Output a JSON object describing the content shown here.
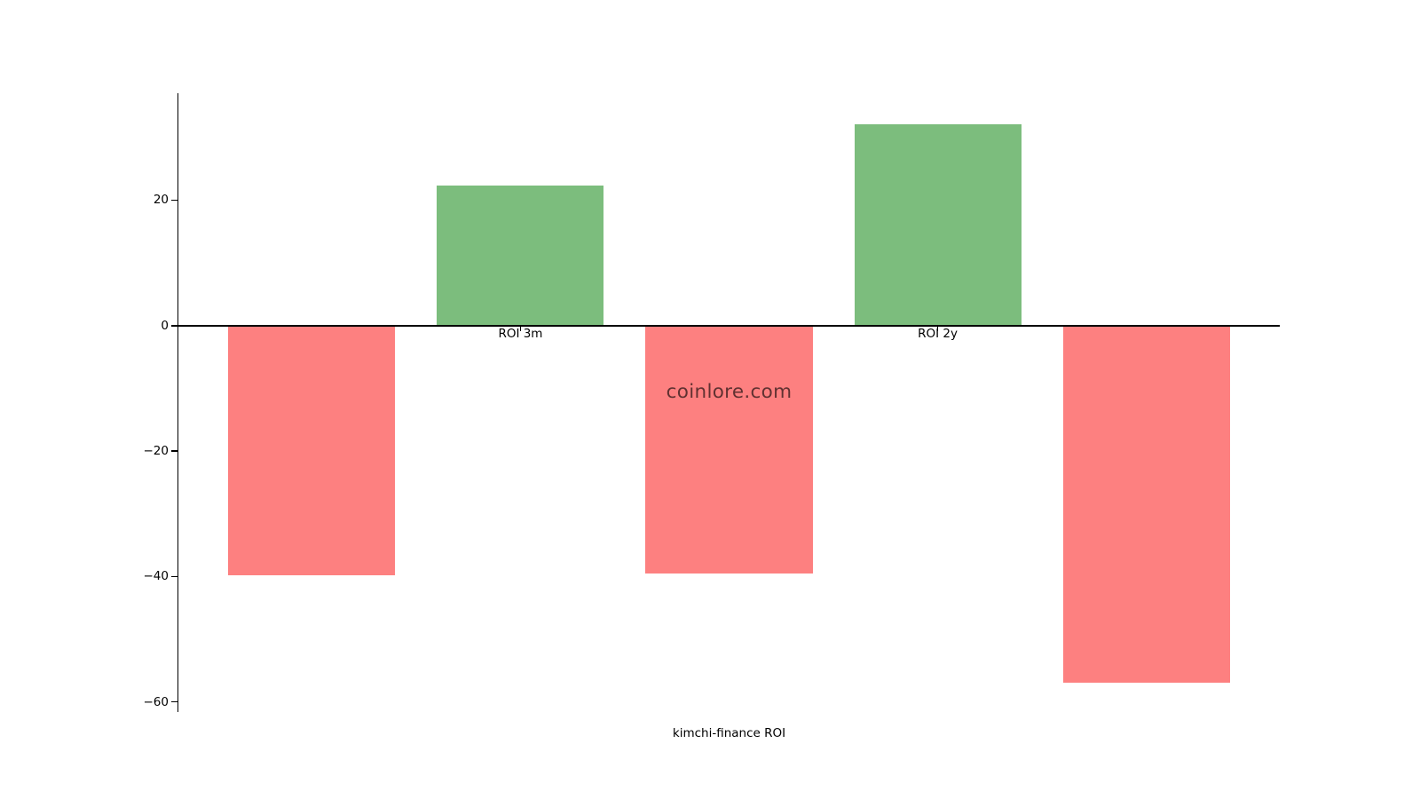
{
  "page": {
    "background_color": "#ffffff"
  },
  "chart_data": {
    "type": "bar",
    "title": "kimchi-finance ROI",
    "watermark": "coinlore.com",
    "categories": [
      "",
      "ROI 3m",
      "",
      "ROI 2y",
      ""
    ],
    "values": [
      -39.8,
      22.3,
      -39.5,
      32.1,
      -56.9
    ],
    "bar_colors": [
      "#fd8080",
      "#7cbd7d",
      "#fd8080",
      "#7cbd7d",
      "#fd8080"
    ],
    "positive_color": "#7cbd7d",
    "negative_color": "#fd8080",
    "y_ticks": [
      20,
      0,
      -20,
      -40,
      -60
    ],
    "y_tick_labels": [
      "20",
      "0",
      "−20",
      "−40",
      "−60"
    ],
    "ylim": [
      -61.6,
      37.05
    ],
    "xlim": [
      -0.64,
      4.64
    ],
    "bar_width_units": 0.8,
    "xlabel": "",
    "ylabel": "",
    "grid": false,
    "legend": null,
    "axis_color": "#000000",
    "text_color": "#000000"
  }
}
